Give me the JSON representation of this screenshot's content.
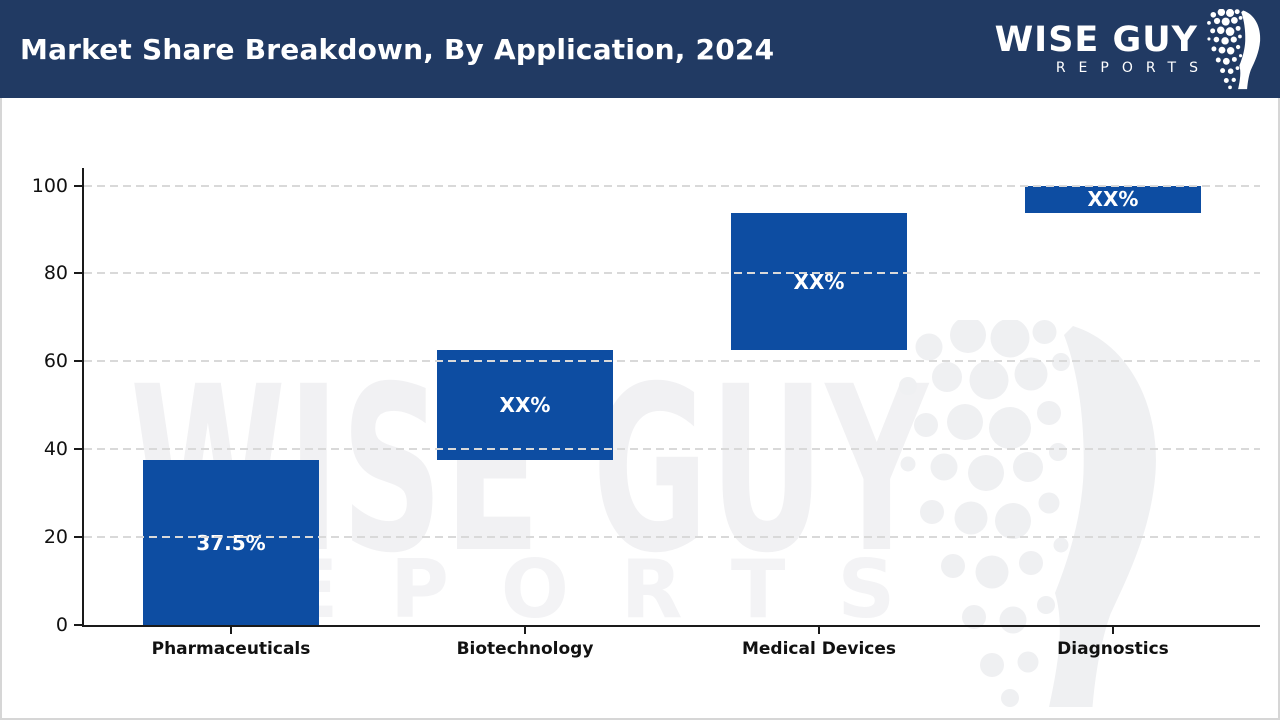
{
  "header": {
    "title": "Market Share Breakdown, By Application, 2024",
    "brand": {
      "name": "WISE GUY",
      "sub": "REPORTS"
    }
  },
  "watermark": {
    "name": "WISE GUY",
    "sub": "REPORTS"
  },
  "chart_data": {
    "type": "bar",
    "variant": "waterfall",
    "title": "Market Share Breakdown, By Application, 2024",
    "categories": [
      "Pharmaceuticals",
      "Biotechnology",
      "Medical Devices",
      "Diagnostics"
    ],
    "segments": [
      {
        "category": "Pharmaceuticals",
        "start": 0,
        "end": 37.5,
        "label": "37.5%"
      },
      {
        "category": "Biotechnology",
        "start": 37.5,
        "end": 62.5,
        "label": "XX%"
      },
      {
        "category": "Medical Devices",
        "start": 62.5,
        "end": 93.75,
        "label": "XX%"
      },
      {
        "category": "Diagnostics",
        "start": 93.75,
        "end": 100,
        "label": "XX%"
      }
    ],
    "yticks": [
      0,
      20,
      40,
      60,
      80,
      100
    ],
    "ylim": [
      0,
      104
    ],
    "xlabel": "",
    "ylabel": "",
    "legend": null,
    "grid": "horizontal-dashed",
    "bar_color": "#0d4da2",
    "bar_label_color": "#ffffff",
    "axis_color": "#1a1a1a",
    "grid_color": "#d9d9d9"
  }
}
